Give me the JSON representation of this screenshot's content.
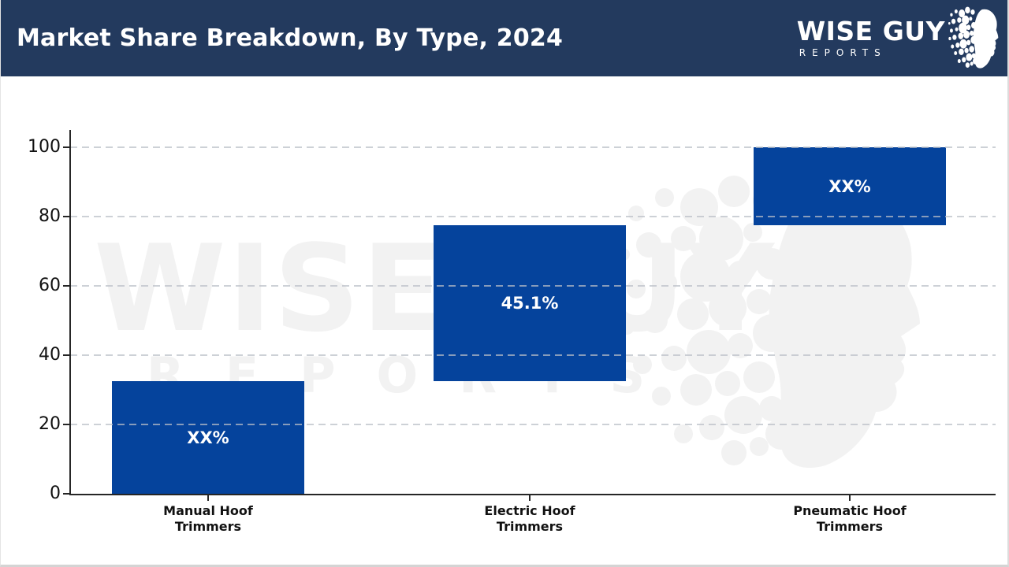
{
  "header": {
    "title": "Market Share Breakdown, By Type, 2024",
    "logo": {
      "brand": "WISE GUY",
      "sub": "REPORTS"
    }
  },
  "watermark": {
    "brand": "WISE GUY",
    "sub": "REPORTS"
  },
  "chart_data": {
    "type": "bar",
    "subtype": "waterfall",
    "title": "Market Share Breakdown, By Type, 2024",
    "categories": [
      [
        "Manual Hoof",
        "Trimmers"
      ],
      [
        "Electric Hoof",
        "Trimmers"
      ],
      [
        "Pneumatic Hoof",
        "Trimmers"
      ]
    ],
    "series": [
      {
        "name": "Manual Hoof Trimmers",
        "start": 0,
        "end": 32.4,
        "value": 32.4,
        "label": "XX%"
      },
      {
        "name": "Electric Hoof Trimmers",
        "start": 32.4,
        "end": 77.5,
        "value": 45.1,
        "label": "45.1%"
      },
      {
        "name": "Pneumatic Hoof Trimmers",
        "start": 77.5,
        "end": 100,
        "value": 22.5,
        "label": "XX%"
      }
    ],
    "xlabel": "",
    "ylabel": "",
    "ylim": [
      0,
      100
    ],
    "yticks": [
      0,
      20,
      40,
      60,
      80,
      100
    ],
    "grid": "horizontal-dashed",
    "legend": "none",
    "colors": {
      "bar": "#05439c",
      "bar_label": "#ffffff",
      "header_bg": "#233a5e",
      "axis": "#262626",
      "grid_dash": "#babfc7",
      "watermark": "#f2f2f2"
    }
  }
}
